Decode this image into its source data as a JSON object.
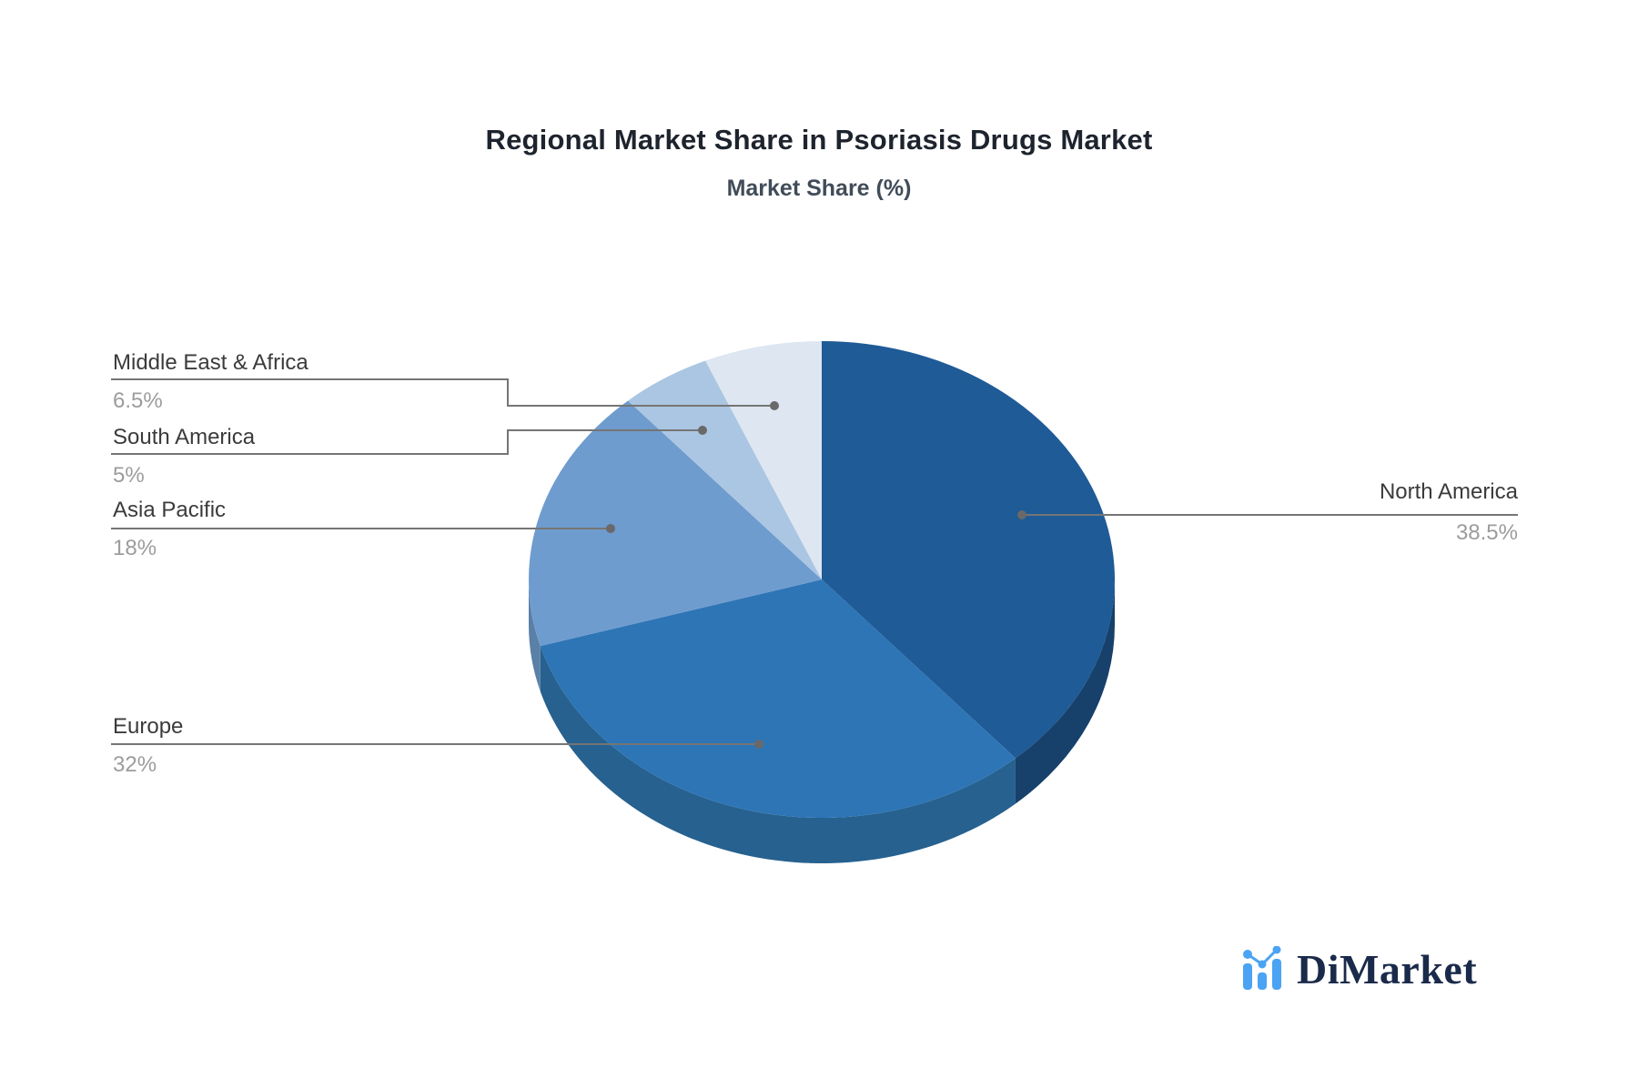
{
  "header": {
    "title": "Regional Market Share in Psoriasis Drugs Market",
    "subtitle": "Market Share (%)"
  },
  "chart_data": {
    "type": "pie",
    "style": "3d-pie",
    "title": "Regional Market Share in Psoriasis Drugs Market",
    "subtitle": "Market Share (%)",
    "unit": "%",
    "start_angle": "12-oclock",
    "direction": "clockwise",
    "legend_position": "callout-labels",
    "series": [
      {
        "label": "North America",
        "value": 38.5,
        "display_value": "38.5%",
        "color": "#1E5B97",
        "side_color": "#17406B",
        "callout_side": "right"
      },
      {
        "label": "Europe",
        "value": 32,
        "display_value": "32%",
        "color": "#2E75B6",
        "side_color": "#26618F",
        "callout_side": "left"
      },
      {
        "label": "Asia Pacific",
        "value": 18,
        "display_value": "18%",
        "color": "#6F9CCE",
        "side_color": "#5B80A7",
        "callout_side": "left"
      },
      {
        "label": "South America",
        "value": 5,
        "display_value": "5%",
        "color": "#ABC6E2",
        "side_color": "#8BA5C2",
        "callout_side": "left"
      },
      {
        "label": "Middle East & Africa",
        "value": 6.5,
        "display_value": "6.5%",
        "color": "#DDE6F1",
        "side_color": "#B8C4D4",
        "callout_side": "left"
      }
    ],
    "label_text_color": "#3B3B3B",
    "value_text_color": "#9C9C9C",
    "leader_line_color": "#757575"
  },
  "branding": {
    "logo_text": "DiMarket",
    "logo_icon": "bar-line-chart-icon",
    "logo_icon_color": "#4BA3F3",
    "logo_text_color": "#1A2A4A"
  }
}
